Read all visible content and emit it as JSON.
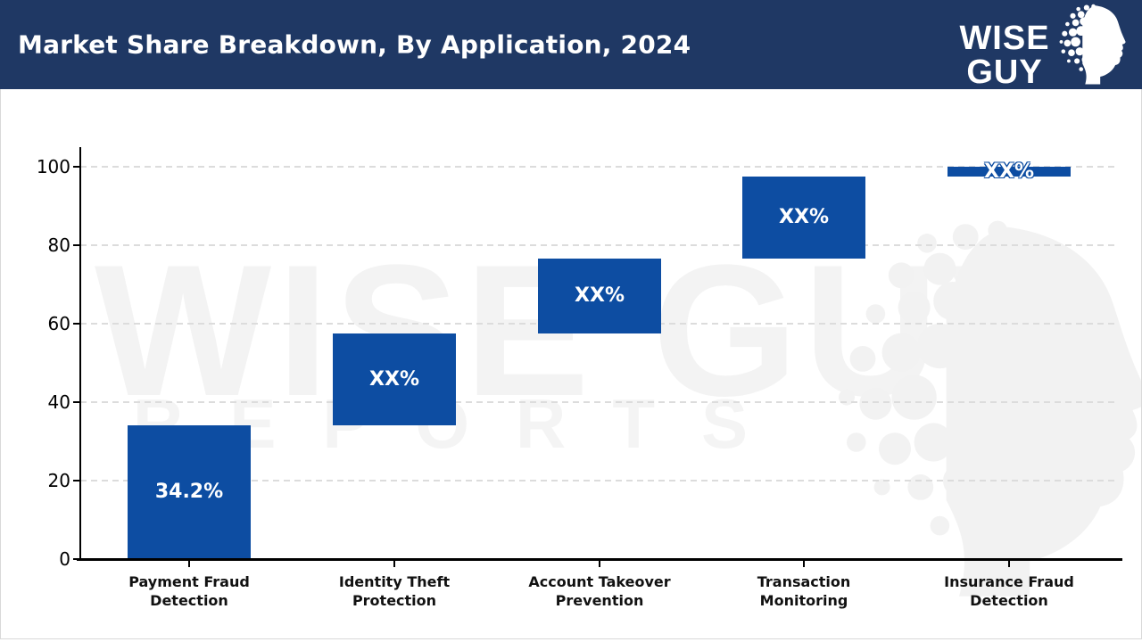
{
  "header": {
    "title": "Market Share Breakdown, By Application, 2024",
    "logo": {
      "wordmark": "WISE GUY",
      "sub": "REPORTS"
    }
  },
  "watermark": {
    "line1": "WISE GUY",
    "line2": "REPORTS"
  },
  "chart_data": {
    "type": "bar",
    "subtype": "waterfall",
    "title": "Market Share Breakdown, By Application, 2024",
    "categories": [
      "Payment Fraud Detection",
      "Identity Theft Protection",
      "Account Takeover Prevention",
      "Transaction Monitoring",
      "Insurance Fraud Detection"
    ],
    "segments": [
      {
        "category": "Payment Fraud Detection",
        "from": 0,
        "to": 34.2,
        "label": "34.2%"
      },
      {
        "category": "Identity Theft Protection",
        "from": 34.2,
        "to": 57.5,
        "label": "XX%"
      },
      {
        "category": "Account Takeover Prevention",
        "from": 57.5,
        "to": 76.6,
        "label": "XX%"
      },
      {
        "category": "Transaction Monitoring",
        "from": 76.6,
        "to": 97.5,
        "label": "XX%"
      },
      {
        "category": "Insurance Fraud Detection",
        "from": 97.5,
        "to": 100,
        "label": "XX%"
      }
    ],
    "yticks": [
      0,
      20,
      40,
      60,
      80,
      100
    ],
    "ylim": [
      0,
      105
    ],
    "xlabel": "",
    "ylabel": "",
    "grid": true,
    "legend": "none"
  },
  "colors": {
    "header_bg": "#1f3864",
    "bar": "#0d4da2",
    "bar_label": "#ffffff",
    "grid": "#dcdcdc",
    "axis": "#000000",
    "watermark": "#f3f3f3",
    "frame_border": "#d9d9d9"
  }
}
